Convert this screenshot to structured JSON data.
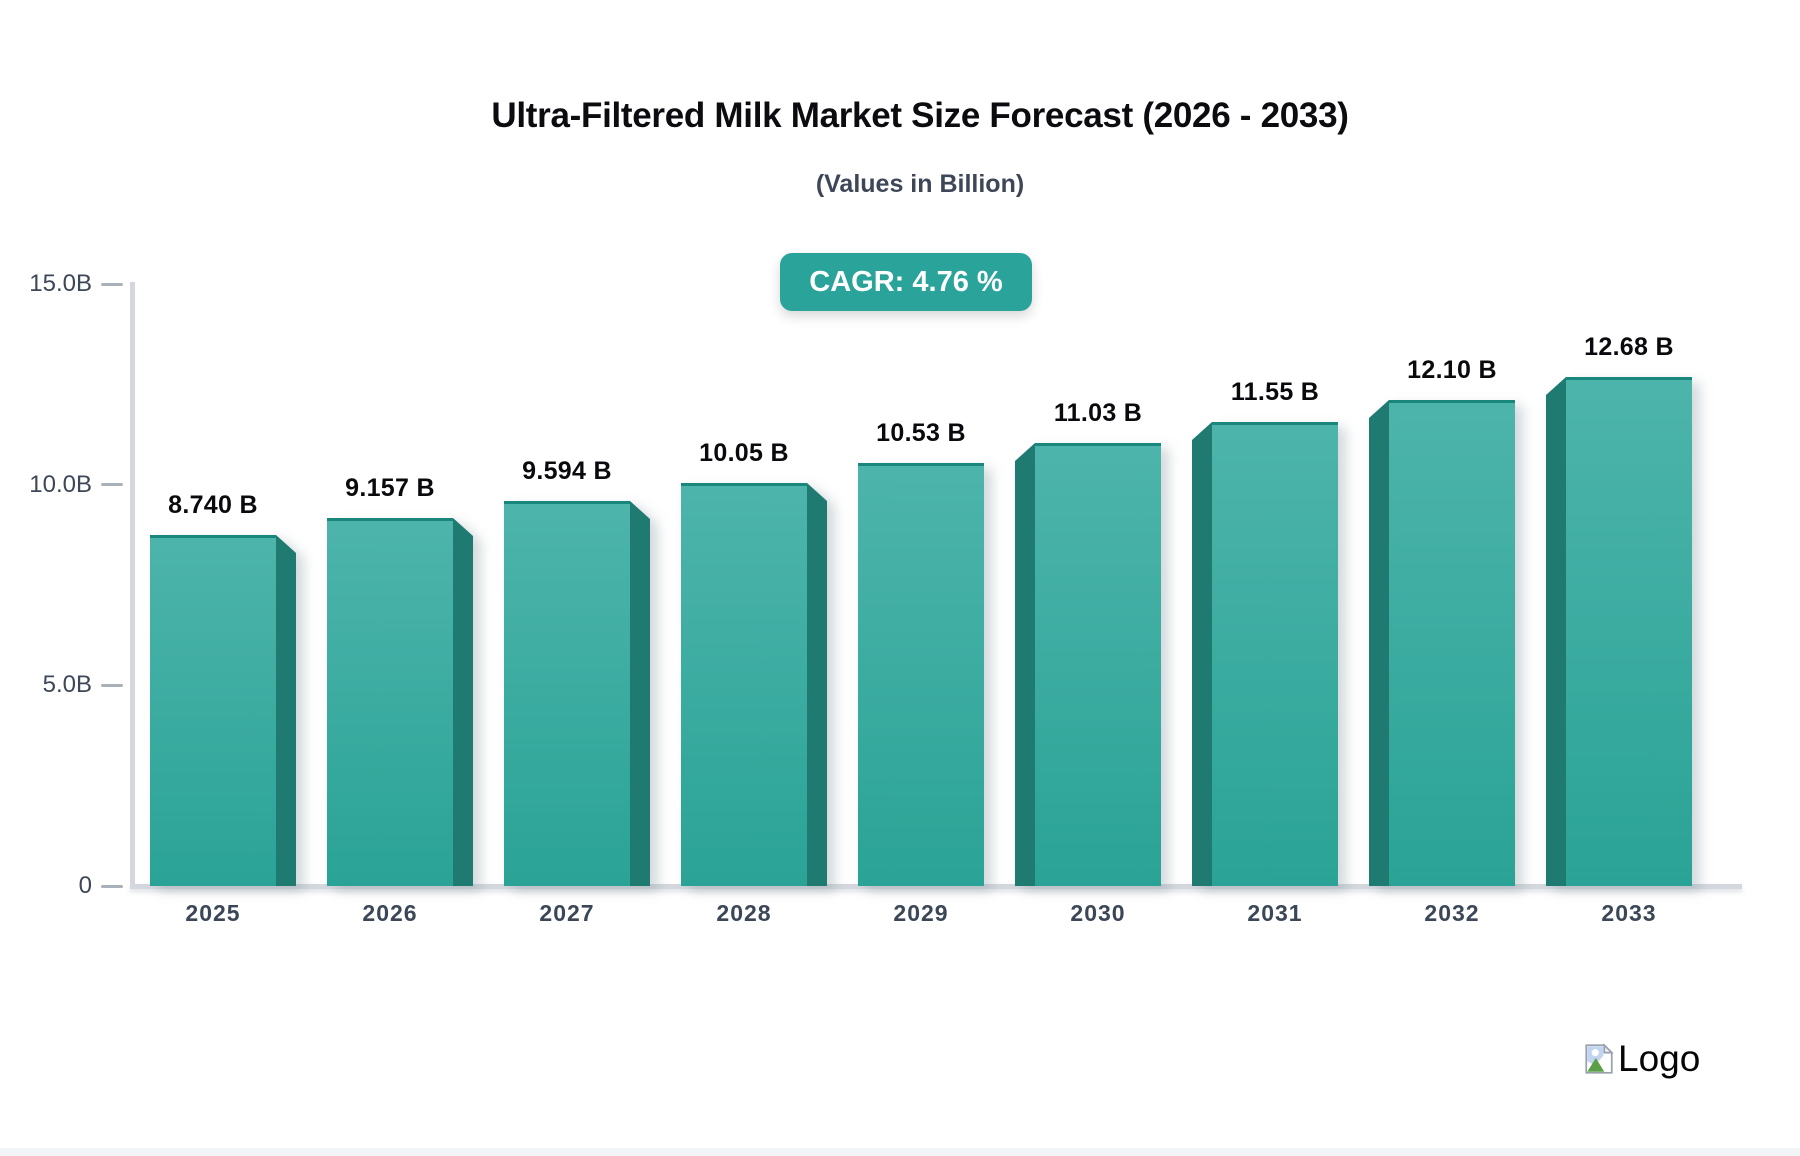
{
  "title": "Ultra-Filtered Milk Market Size Forecast (2026 - 2033)",
  "subtitle": "(Values in Billion)",
  "badge": {
    "label": "CAGR: 4.76 %"
  },
  "chart_data": {
    "type": "bar",
    "title": "Ultra-Filtered Milk Market Size Forecast (2026 - 2033)",
    "subtitle": "(Values in Billion)",
    "categories": [
      "2025",
      "2026",
      "2027",
      "2028",
      "2029",
      "2030",
      "2031",
      "2032",
      "2033"
    ],
    "values": [
      8.74,
      9.157,
      9.594,
      10.05,
      10.53,
      11.03,
      11.55,
      12.1,
      12.68
    ],
    "value_labels": [
      "8.740 B",
      "9.157 B",
      "9.594 B",
      "10.05 B",
      "10.53 B",
      "11.03 B",
      "11.55 B",
      "12.10 B",
      "12.68 B"
    ],
    "xlabel": "",
    "ylabel": "",
    "ylim": [
      0,
      15
    ],
    "yticks": {
      "values": [
        0,
        5,
        10,
        15
      ],
      "labels": [
        "0",
        "5.0B",
        "10.0B",
        "15.0B"
      ]
    },
    "grid": false,
    "legend": "none",
    "annotation": "CAGR: 4.76 %"
  },
  "colors": {
    "bar_face_top": "#4db4ab",
    "bar_face_bottom": "#2aa396",
    "bar_top_edge": "#1a877c",
    "bar_side": "#1f7a72",
    "badge_bg": "#2aa49b",
    "axis_line": "#d4d8de",
    "tick": "#a9b1ba",
    "title_text": "#0b0b10",
    "axis_text": "#3d4757"
  },
  "logo": {
    "alt_text": "Logo"
  }
}
